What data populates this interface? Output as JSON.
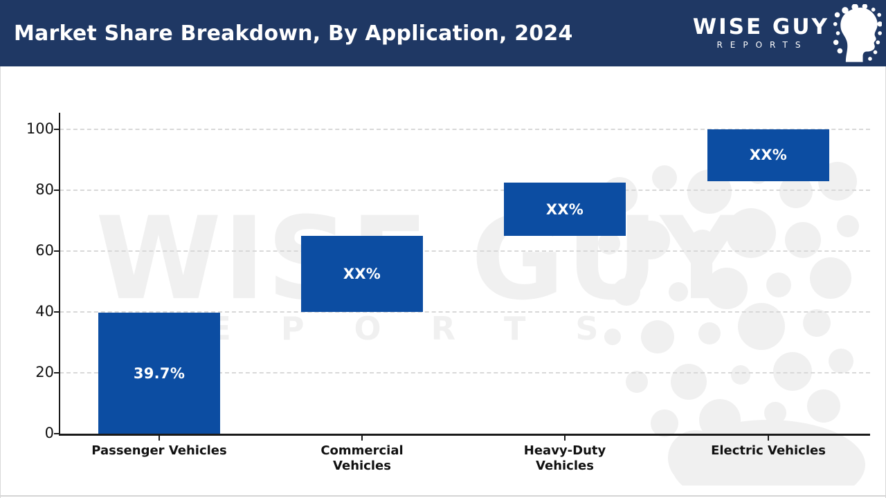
{
  "header": {
    "title": "Market Share Breakdown, By Application, 2024",
    "bg_color": "#1f3864",
    "logo": {
      "line1": "WISE GUY",
      "line2": "REPORTS",
      "head_icon": "dotted-head-profile"
    }
  },
  "watermark": {
    "line1": "WISE GUY",
    "line2": "REPORTS",
    "color": "#f0f0f0"
  },
  "chart_data": {
    "type": "bar",
    "subtype": "waterfall",
    "title": "Market Share Breakdown, By Application, 2024",
    "categories": [
      "Passenger Vehicles",
      "Commercial Vehicles",
      "Heavy-Duty Vehicles",
      "Electric Vehicles"
    ],
    "tick_labels": [
      "Passenger Vehicles",
      "Commercial\nVehicles",
      "Heavy-Duty\nVehicles",
      "Electric Vehicles"
    ],
    "segments": [
      {
        "category": "Passenger Vehicles",
        "start": 0,
        "end": 39.7,
        "label": "39.7%"
      },
      {
        "category": "Commercial Vehicles",
        "start": 40,
        "end": 65,
        "label": "XX%"
      },
      {
        "category": "Heavy-Duty Vehicles",
        "start": 65,
        "end": 82.5,
        "label": "XX%"
      },
      {
        "category": "Electric Vehicles",
        "start": 83,
        "end": 100,
        "label": "XX%"
      }
    ],
    "yticks": [
      0,
      20,
      40,
      60,
      80,
      100
    ],
    "ylim": [
      0,
      105.5
    ],
    "grid": "horizontal-dashed",
    "legend": "none",
    "bar_color": "#0c4da2",
    "bar_label_color": "#ffffff",
    "axis_color": "#1a1a1a",
    "grid_color": "#d8d8d8"
  }
}
